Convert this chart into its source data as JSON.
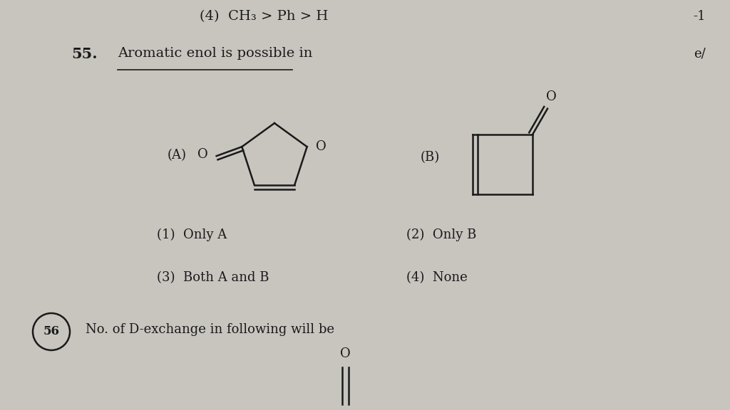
{
  "bg_color": "#c8c5bf",
  "title_num": "55.",
  "title_text": "Aromatic enol is possible in",
  "label_A": "(A)",
  "label_B": "(B)",
  "opt1": "(1)  Only A",
  "opt2": "(2)  Only B",
  "opt3": "(3)  Both A and B",
  "opt4": "(4)  None",
  "next_text": "No. of D-exchange in following will be",
  "header_text": "(4)  CH₃ > Ph > H",
  "right_text1": "-1",
  "right_text2": "e/",
  "circle56_label": "56",
  "font_color": "#1a1a1a",
  "line_color": "#1a1a1a"
}
